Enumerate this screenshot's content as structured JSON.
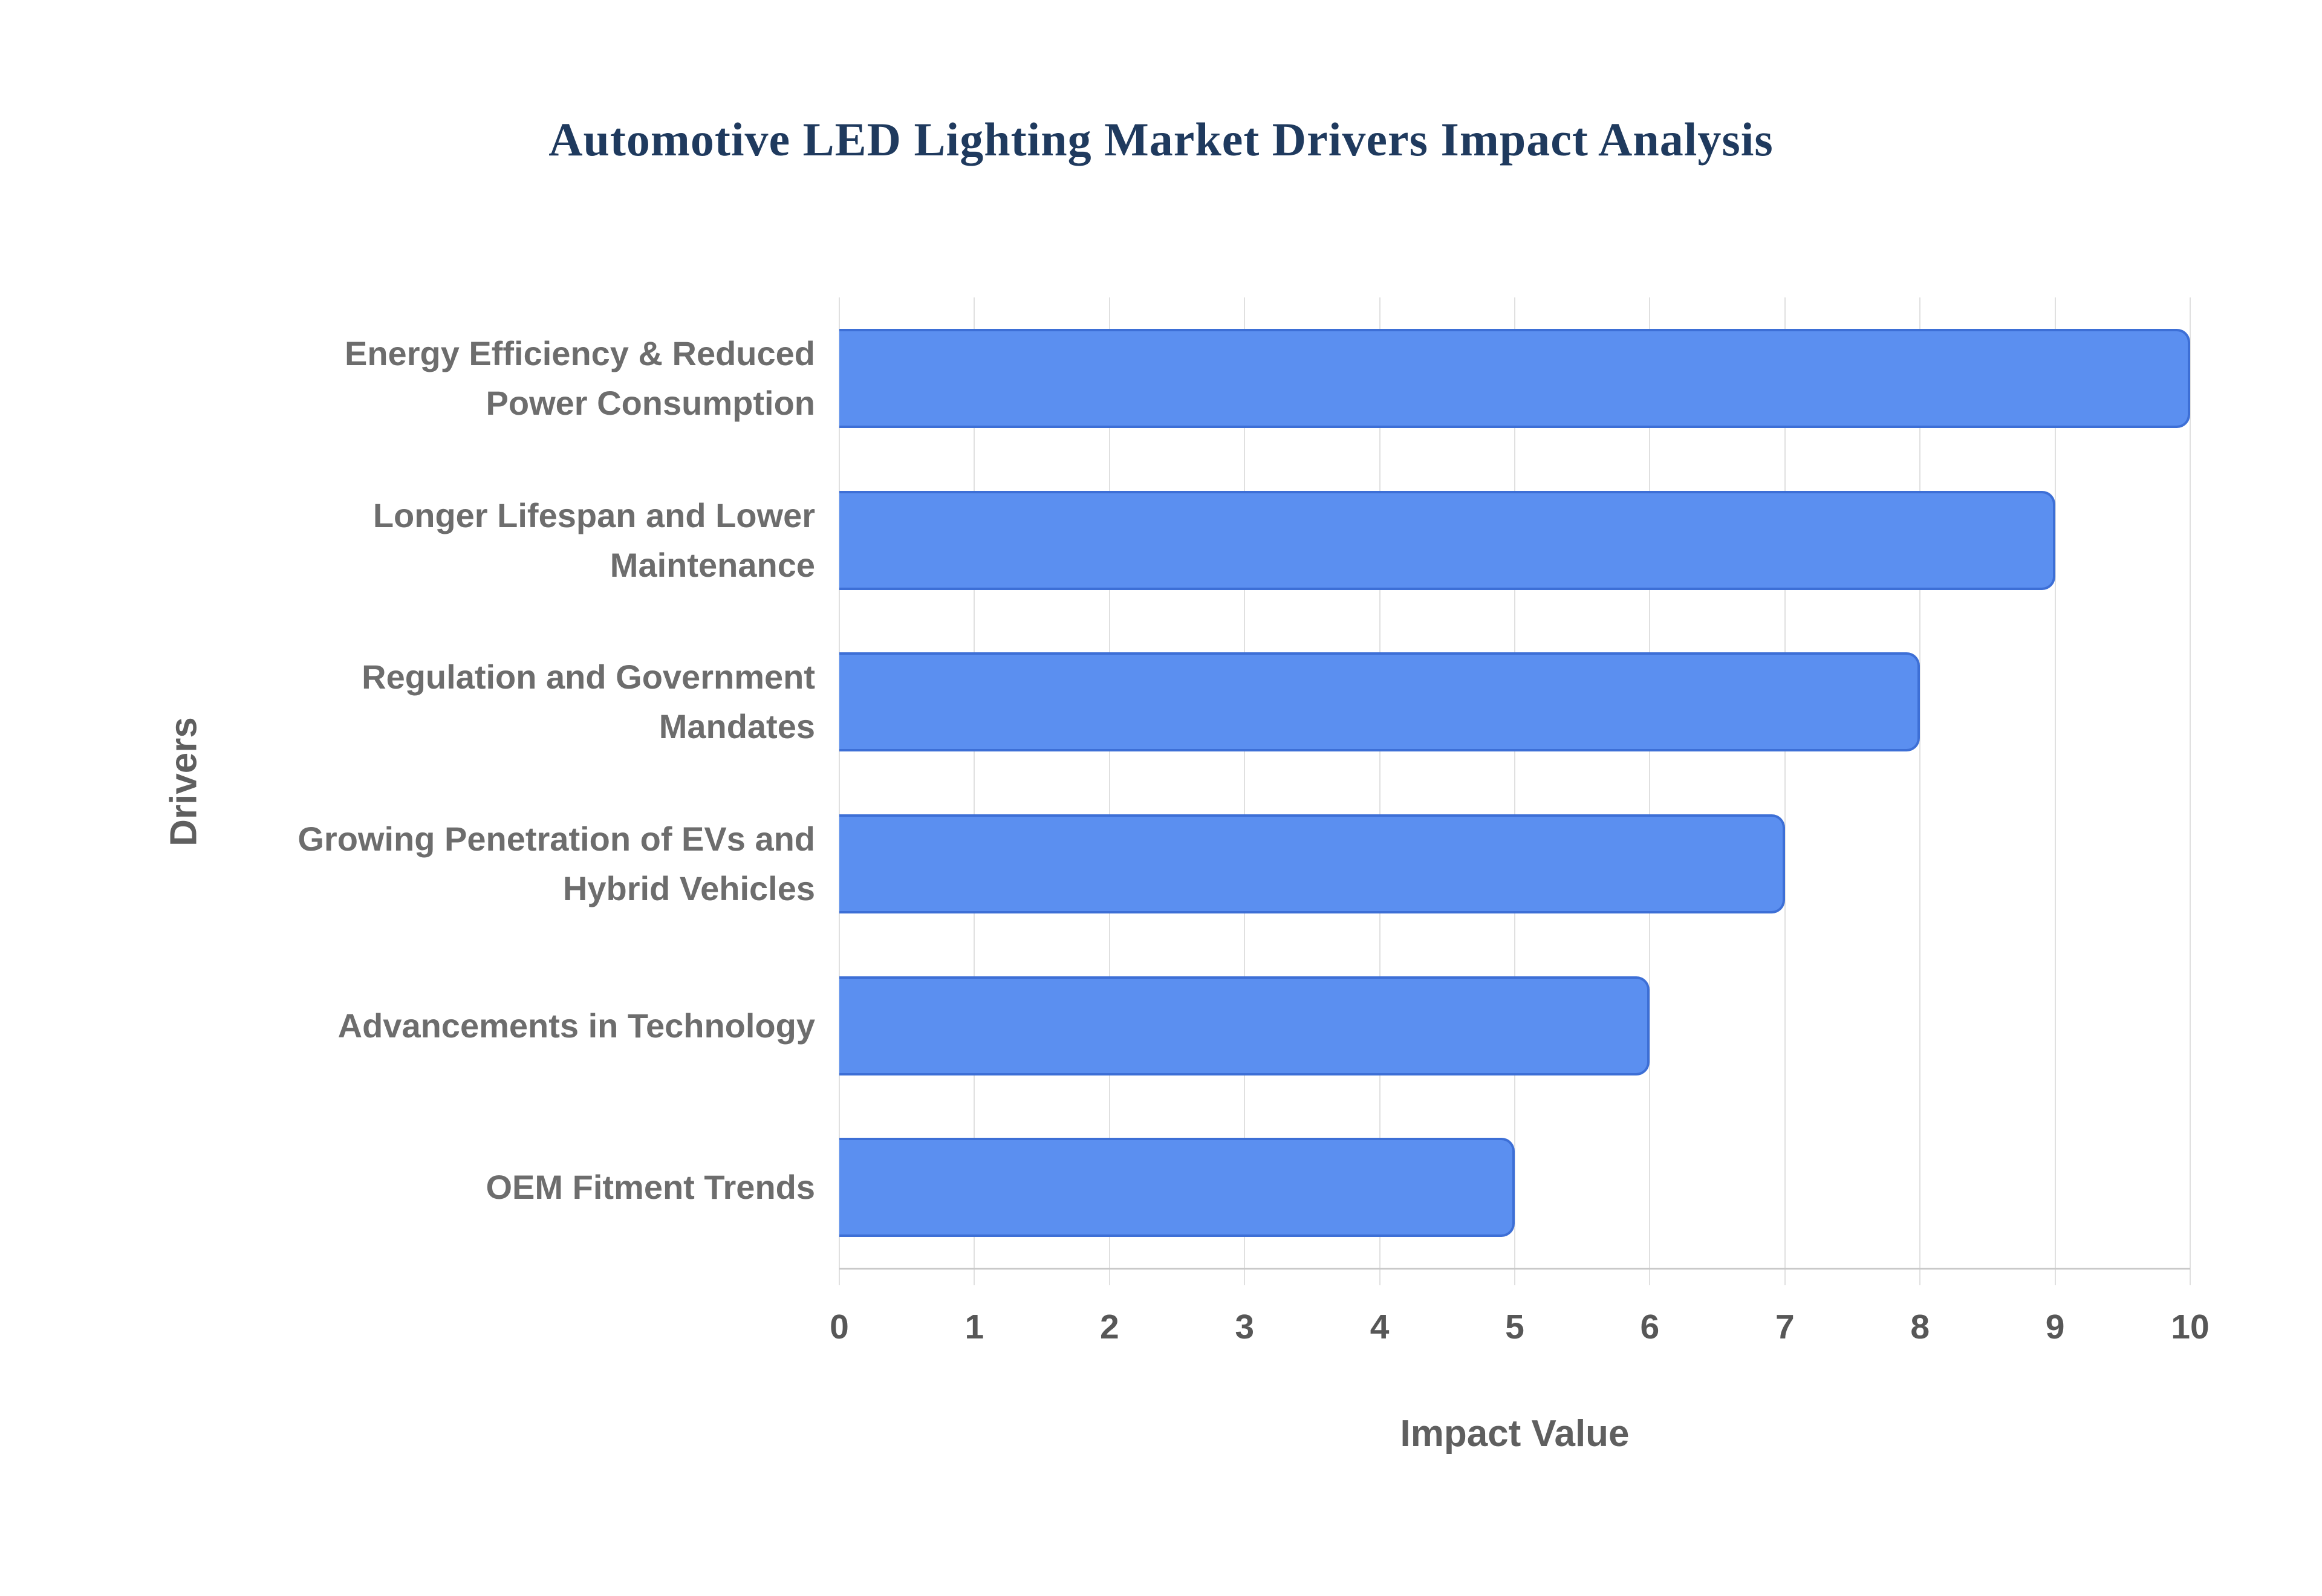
{
  "title": "Automotive LED Lighting Market Drivers Impact Analysis",
  "chart_data": {
    "type": "bar",
    "orientation": "horizontal",
    "title": "Automotive LED Lighting Market Drivers Impact Analysis",
    "categories": [
      "Energy Efficiency & Reduced\nPower Consumption",
      "Longer Lifespan and Lower\nMaintenance",
      "Regulation and Government\nMandates",
      "Growing Penetration of EVs and\nHybrid Vehicles",
      "Advancements in Technology",
      "OEM Fitment Trends"
    ],
    "values": [
      10,
      9,
      8,
      7,
      6,
      5
    ],
    "xlabel": "Impact Value",
    "ylabel": "Drivers",
    "xlim": [
      0,
      10
    ],
    "xticks": [
      "0",
      "1",
      "2",
      "3",
      "4",
      "5",
      "6",
      "7",
      "8",
      "9",
      "10"
    ],
    "grid": "vertical",
    "legend": "none",
    "colors": {
      "bar_fill": "#5b8ff0",
      "bar_border": "#3d6fd6",
      "title": "#1f3a5e",
      "category_label": "#6d6d6d",
      "tick_label": "#575757",
      "axis_label": "#5f5f5f",
      "gridline": "#e0e0e0",
      "axis_line": "#c9c9c9",
      "background": "#ffffff"
    }
  }
}
